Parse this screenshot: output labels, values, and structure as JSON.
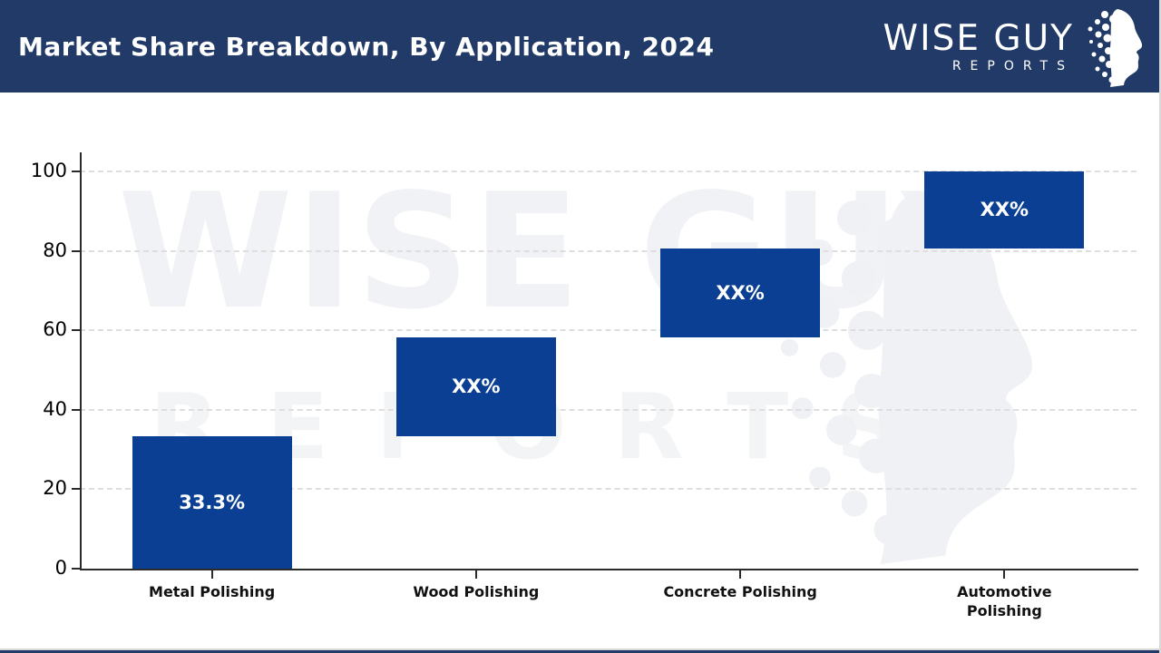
{
  "header": {
    "title": "Market Share Breakdown, By Application, 2024",
    "bg_color": "#223a67",
    "logo": {
      "line1": "WISE GUY",
      "line2": "REPORTS"
    }
  },
  "watermark": {
    "line1": "WISE GUY",
    "line2": "REPORTS"
  },
  "footer": {
    "bar_color": "#223a67"
  },
  "chart_data": {
    "type": "bar",
    "subtype": "stepped-waterfall",
    "title": "Market Share Breakdown, By Application, 2024",
    "categories": [
      "Metal Polishing",
      "Wood Polishing",
      "Concrete Polishing",
      "Automotive\nPolishing"
    ],
    "segments": [
      {
        "category": "Metal Polishing",
        "start": 0,
        "end": 33.3,
        "height": 33.3,
        "label": "33.3%"
      },
      {
        "category": "Wood Polishing",
        "start": 33.3,
        "end": 58.3,
        "height": 25.0,
        "label": "XX%"
      },
      {
        "category": "Concrete Polishing",
        "start": 58.3,
        "end": 80.6,
        "height": 22.3,
        "label": "XX%"
      },
      {
        "category": "Automotive Polishing",
        "start": 80.6,
        "end": 100,
        "height": 19.4,
        "label": "XX%"
      }
    ],
    "xlabel": "",
    "ylabel": "",
    "ylim": [
      0,
      100
    ],
    "yticks": [
      0,
      20,
      40,
      60,
      80,
      100
    ],
    "grid": "horizontal-dashed",
    "legend": "none",
    "colors": {
      "bar": "#0b3f94",
      "bar_label": "#ffffff",
      "grid": "#dedede",
      "axis": "#2b2b2b",
      "tick_label": "#000000",
      "category_label": "#111111"
    }
  }
}
